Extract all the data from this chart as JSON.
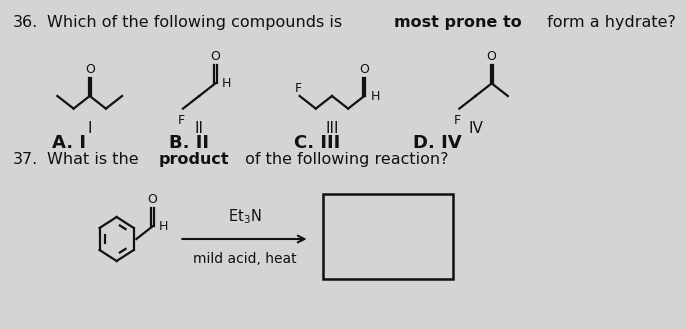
{
  "background_color": "#d4d4d4",
  "q36_number": "36.",
  "q36_text_normal": "Which of the following compounds is ",
  "q36_text_bold": "most prone to",
  "q36_text_normal2": " form a hydrate?",
  "q37_number": "37.",
  "q37_text_normal": "What is the ",
  "q37_text_bold": "product",
  "q37_text_normal2": " of the following reaction?",
  "answers_36": [
    "A. I",
    "B. II",
    "C. III",
    "D. IV"
  ],
  "roman_numerals": [
    "I",
    "II",
    "III",
    "IV"
  ],
  "font_size_question": 11.5,
  "font_size_answer": 13,
  "font_size_roman": 11,
  "reaction_above": "Et$_3$N",
  "reaction_below": "mild acid, heat",
  "text_color": "#111111"
}
